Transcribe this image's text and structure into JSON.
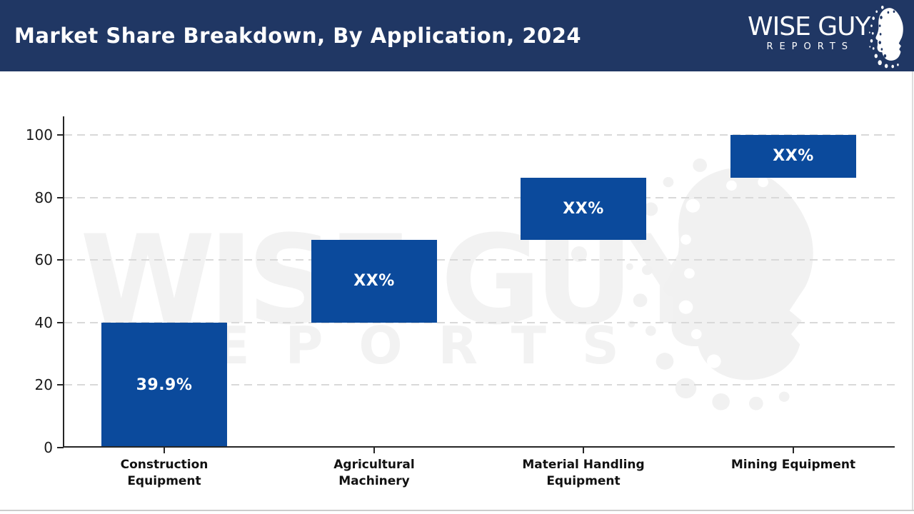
{
  "header": {
    "title": "Market Share Breakdown, By Application, 2024",
    "logo": {
      "brand_line1": "WISE GUY",
      "brand_line2": "REPORTS"
    }
  },
  "watermark": {
    "line1": "WISE GUY",
    "line2": "REPORTS"
  },
  "colors": {
    "header_bg": "#203764",
    "bar": "#0b4a9c",
    "bar_label": "#ffffff",
    "grid": "#d9d9d9",
    "axis": "#262626",
    "watermark": "#f2f2f2",
    "edge": "#cccccc"
  },
  "chart_data": {
    "type": "bar",
    "subtype": "waterfall",
    "title": "Market Share Breakdown, By Application, 2024",
    "unit": "%",
    "ylim": [
      0,
      100
    ],
    "yticks": [
      0,
      20,
      40,
      60,
      80,
      100
    ],
    "grid": "horizontal-dashed",
    "legend": "none",
    "categories": [
      "Construction Equipment",
      "Agricultural Machinery",
      "Material Handling Equipment",
      "Mining Equipment"
    ],
    "segments": [
      {
        "category": "Construction Equipment",
        "category_lines": [
          "Construction",
          "Equipment"
        ],
        "start": 0,
        "end": 39.9,
        "value": 39.9,
        "value_label": "39.9%"
      },
      {
        "category": "Agricultural Machinery",
        "category_lines": [
          "Agricultural",
          "Machinery"
        ],
        "start": 39.9,
        "end": 66.5,
        "value": 26.6,
        "value_label": "XX%"
      },
      {
        "category": "Material Handling Equipment",
        "category_lines": [
          "Material Handling",
          "Equipment"
        ],
        "start": 66.5,
        "end": 86.4,
        "value": 19.9,
        "value_label": "XX%"
      },
      {
        "category": "Mining Equipment",
        "category_lines": [
          "Mining Equipment"
        ],
        "start": 86.4,
        "end": 100,
        "value": 13.6,
        "value_label": "XX%"
      }
    ]
  }
}
